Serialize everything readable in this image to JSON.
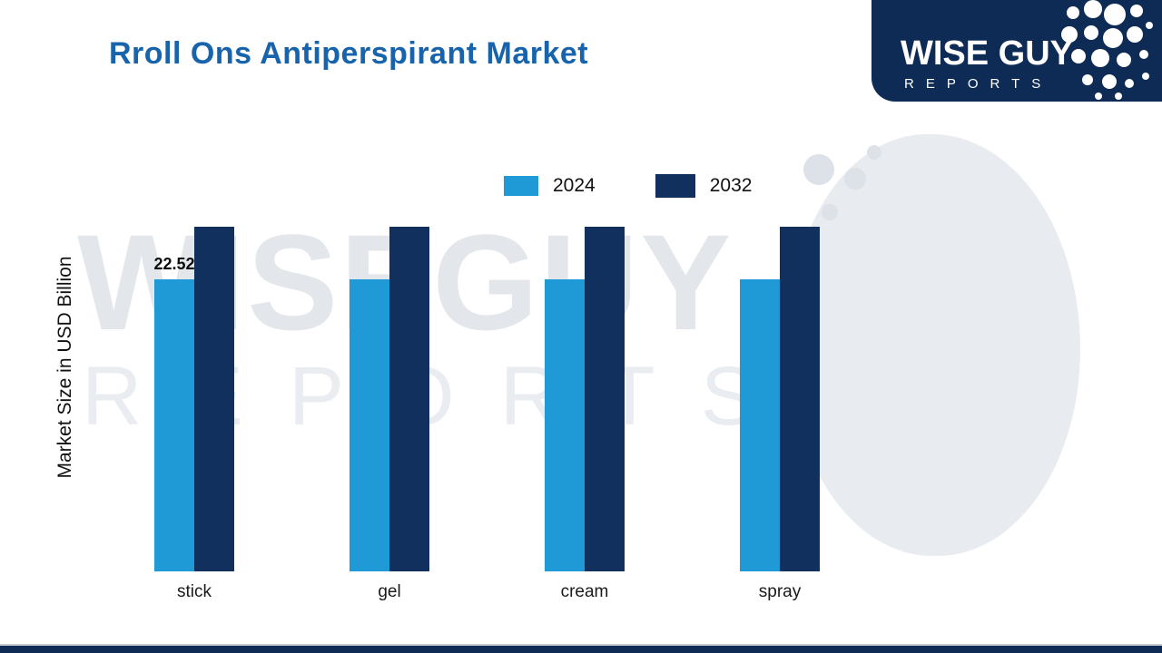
{
  "page": {
    "title": "Rroll Ons Antiperspirant Market"
  },
  "logo": {
    "line1": "WISE GUY",
    "line2": "REPORTS"
  },
  "watermark": {
    "line1": "WISEGUY",
    "line2": "REPORTS"
  },
  "colors": {
    "title_blue": "#1763ac",
    "series_2024": "#1f9ad6",
    "series_2032": "#12305e",
    "logo_background": "#0e2b56",
    "watermark_gray": "#e8ebef"
  },
  "chart_data": {
    "type": "bar",
    "title": "Rroll Ons Antiperspirant Market",
    "xlabel": "",
    "ylabel": "Market Size in USD Billion",
    "categories": [
      "stick",
      "gel",
      "cream",
      "spray"
    ],
    "series": [
      {
        "name": "2024",
        "color": "#1f9ad6",
        "values": [
          22.52,
          22.52,
          22.52,
          22.52
        ]
      },
      {
        "name": "2032",
        "color": "#12305e",
        "values": [
          26.6,
          26.6,
          26.6,
          26.6
        ]
      }
    ],
    "ylim": [
      0,
      28
    ],
    "grid": false,
    "legend_position": "top",
    "data_label": {
      "text": "22.52",
      "category_index": 0,
      "series_index": 0
    }
  }
}
